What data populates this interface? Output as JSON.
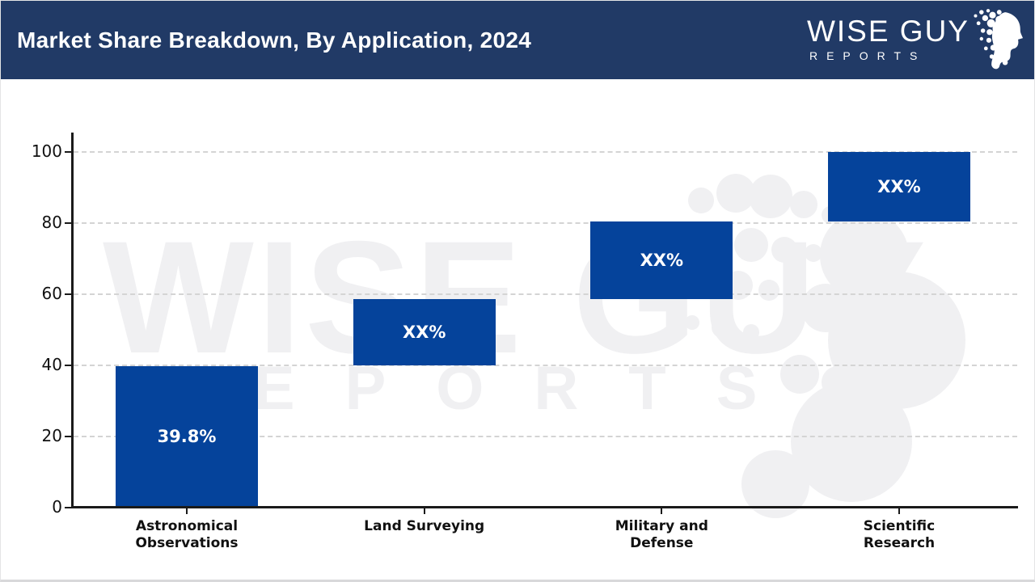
{
  "header": {
    "title": "Market Share Breakdown, By Application, 2024",
    "bg_color": "#213a66",
    "text_color": "#ffffff",
    "logo": {
      "wordmark": "WISE GUY",
      "subtext": "REPORTS"
    }
  },
  "watermark": {
    "wordmark": "WISE GUY",
    "subtext": "REPORTS"
  },
  "chart_data": {
    "type": "bar",
    "subtype": "waterfall",
    "title": "Market Share Breakdown, By Application, 2024",
    "categories": [
      "Astronomical Observations",
      "Land Surveying",
      "Military and Defense",
      "Scientific Research"
    ],
    "category_lines": [
      [
        "Astronomical",
        "Observations"
      ],
      [
        "Land Surveying"
      ],
      [
        "Military and",
        "Defense"
      ],
      [
        "Scientific",
        "Research"
      ]
    ],
    "segments": [
      {
        "category": "Astronomical Observations",
        "start": 0,
        "end": 39.8,
        "label": "39.8%"
      },
      {
        "category": "Land Surveying",
        "start": 40,
        "end": 58.6,
        "label": "XX%"
      },
      {
        "category": "Military and Defense",
        "start": 58.6,
        "end": 80.4,
        "label": "XX%"
      },
      {
        "category": "Scientific Research",
        "start": 80.4,
        "end": 100,
        "label": "XX%"
      }
    ],
    "xlabel": "",
    "ylabel": "",
    "ylim": [
      0,
      100
    ],
    "yticks": [
      0,
      20,
      40,
      60,
      80,
      100
    ],
    "grid": {
      "axis": "y",
      "style": "dashed",
      "color": "#d4d4d4"
    },
    "legend": "none",
    "bar_color": "#05439b",
    "bar_label_color": "#ffffff",
    "axis_color": "#1a1a1a",
    "tick_label_color": "#111111"
  }
}
